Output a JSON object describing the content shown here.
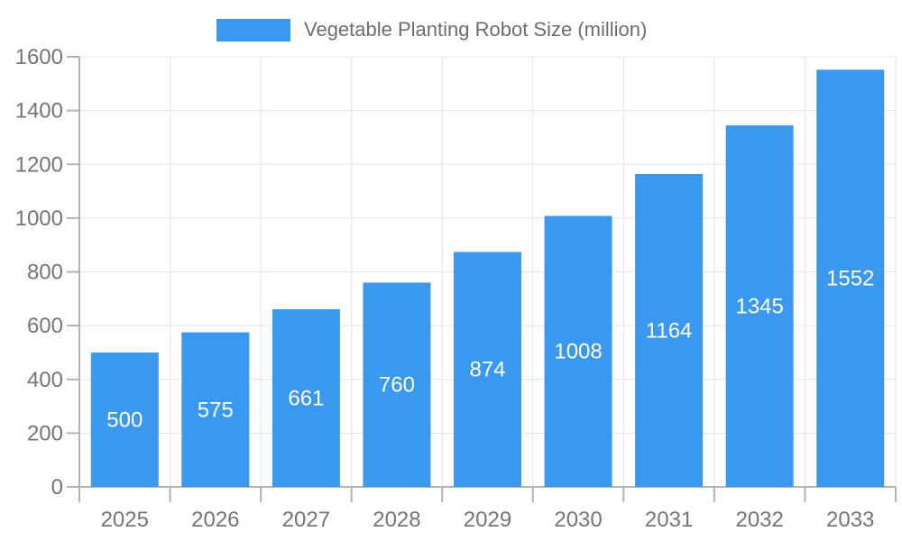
{
  "legend": {
    "label": "Vegetable Planting Robot Size (million)"
  },
  "chart_data": {
    "type": "bar",
    "title": "Vegetable Planting Robot Size (million)",
    "categories": [
      "2025",
      "2026",
      "2027",
      "2028",
      "2029",
      "2030",
      "2031",
      "2032",
      "2033"
    ],
    "values": [
      500,
      575,
      661,
      760,
      874,
      1008,
      1164,
      1345,
      1552
    ],
    "value_labels": [
      "500",
      "575",
      "661",
      "760",
      "874",
      "1008",
      "1164",
      "1345",
      "1552"
    ],
    "xlabel": "",
    "ylabel": "",
    "ylim": [
      0,
      1600
    ],
    "yticks": [
      0,
      200,
      400,
      600,
      800,
      1000,
      1200,
      1400,
      1600
    ],
    "ytick_labels": [
      "0",
      "200",
      "400",
      "600",
      "800",
      "1000",
      "1200",
      "1400",
      "1600"
    ],
    "grid": true,
    "legend_position": "top",
    "colors": {
      "bar": "#3a99ee",
      "value_label": "#ffffff",
      "grid": "#e3e3e3",
      "axis": "#b3b3b3",
      "tick_label": "#757575"
    }
  }
}
